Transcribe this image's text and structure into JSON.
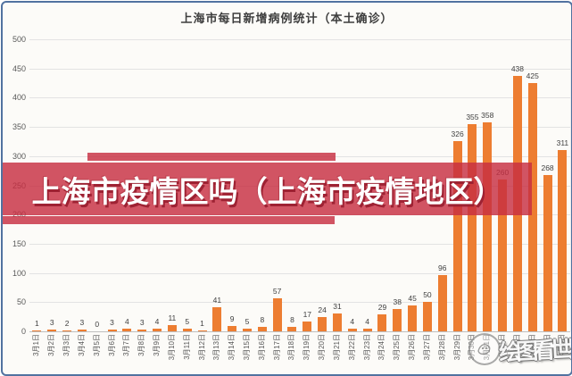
{
  "frame": {
    "border_color": "#5172a0",
    "background": "#fcfbf8"
  },
  "chart_data": {
    "type": "bar",
    "title": "上海市每日新增病例统计（本土确诊）",
    "categories": [
      "3月1日",
      "3月2日",
      "3月3日",
      "3月4日",
      "3月5日",
      "3月6日",
      "3月7日",
      "3月8日",
      "3月9日",
      "3月10日",
      "3月11日",
      "3月12日",
      "3月13日",
      "3月14日",
      "3月15日",
      "3月16日",
      "3月17日",
      "3月18日",
      "3月19日",
      "3月20日",
      "3月21日",
      "3月22日",
      "3月23日",
      "3月24日",
      "3月25日",
      "3月26日",
      "3月27日",
      "3月28日",
      "3月29日",
      "3月30日",
      "3月31日",
      "4月1日",
      "4月2日",
      "4月3日",
      "4月4日",
      "4月5日"
    ],
    "values": [
      1,
      3,
      2,
      3,
      0,
      3,
      4,
      3,
      4,
      11,
      5,
      1,
      41,
      9,
      5,
      8,
      57,
      8,
      17,
      24,
      31,
      4,
      4,
      29,
      38,
      45,
      50,
      96,
      326,
      355,
      358,
      260,
      438,
      425,
      268,
      311
    ],
    "xlabel": "",
    "ylabel": "",
    "ylim": [
      0,
      500
    ],
    "y_ticks": [
      0,
      50,
      100,
      150,
      200,
      250,
      300,
      350,
      400,
      450,
      500
    ],
    "grid": true,
    "legend": "none",
    "bar_color": "#ED7D31",
    "value_label_color": "#404040",
    "axis_label_color": "#595959"
  },
  "overlay_banner": {
    "text": "上海市疫情区吗（上海市疫情地区）",
    "background_rgba": "rgba(199,46,66,0.82)",
    "accent_hex": "#c72e42",
    "text_color": "#ffffff",
    "shadow_color": "#9b2030"
  },
  "watermark": {
    "text": "绘图看世界",
    "logo": "circle-doodle-logo"
  }
}
